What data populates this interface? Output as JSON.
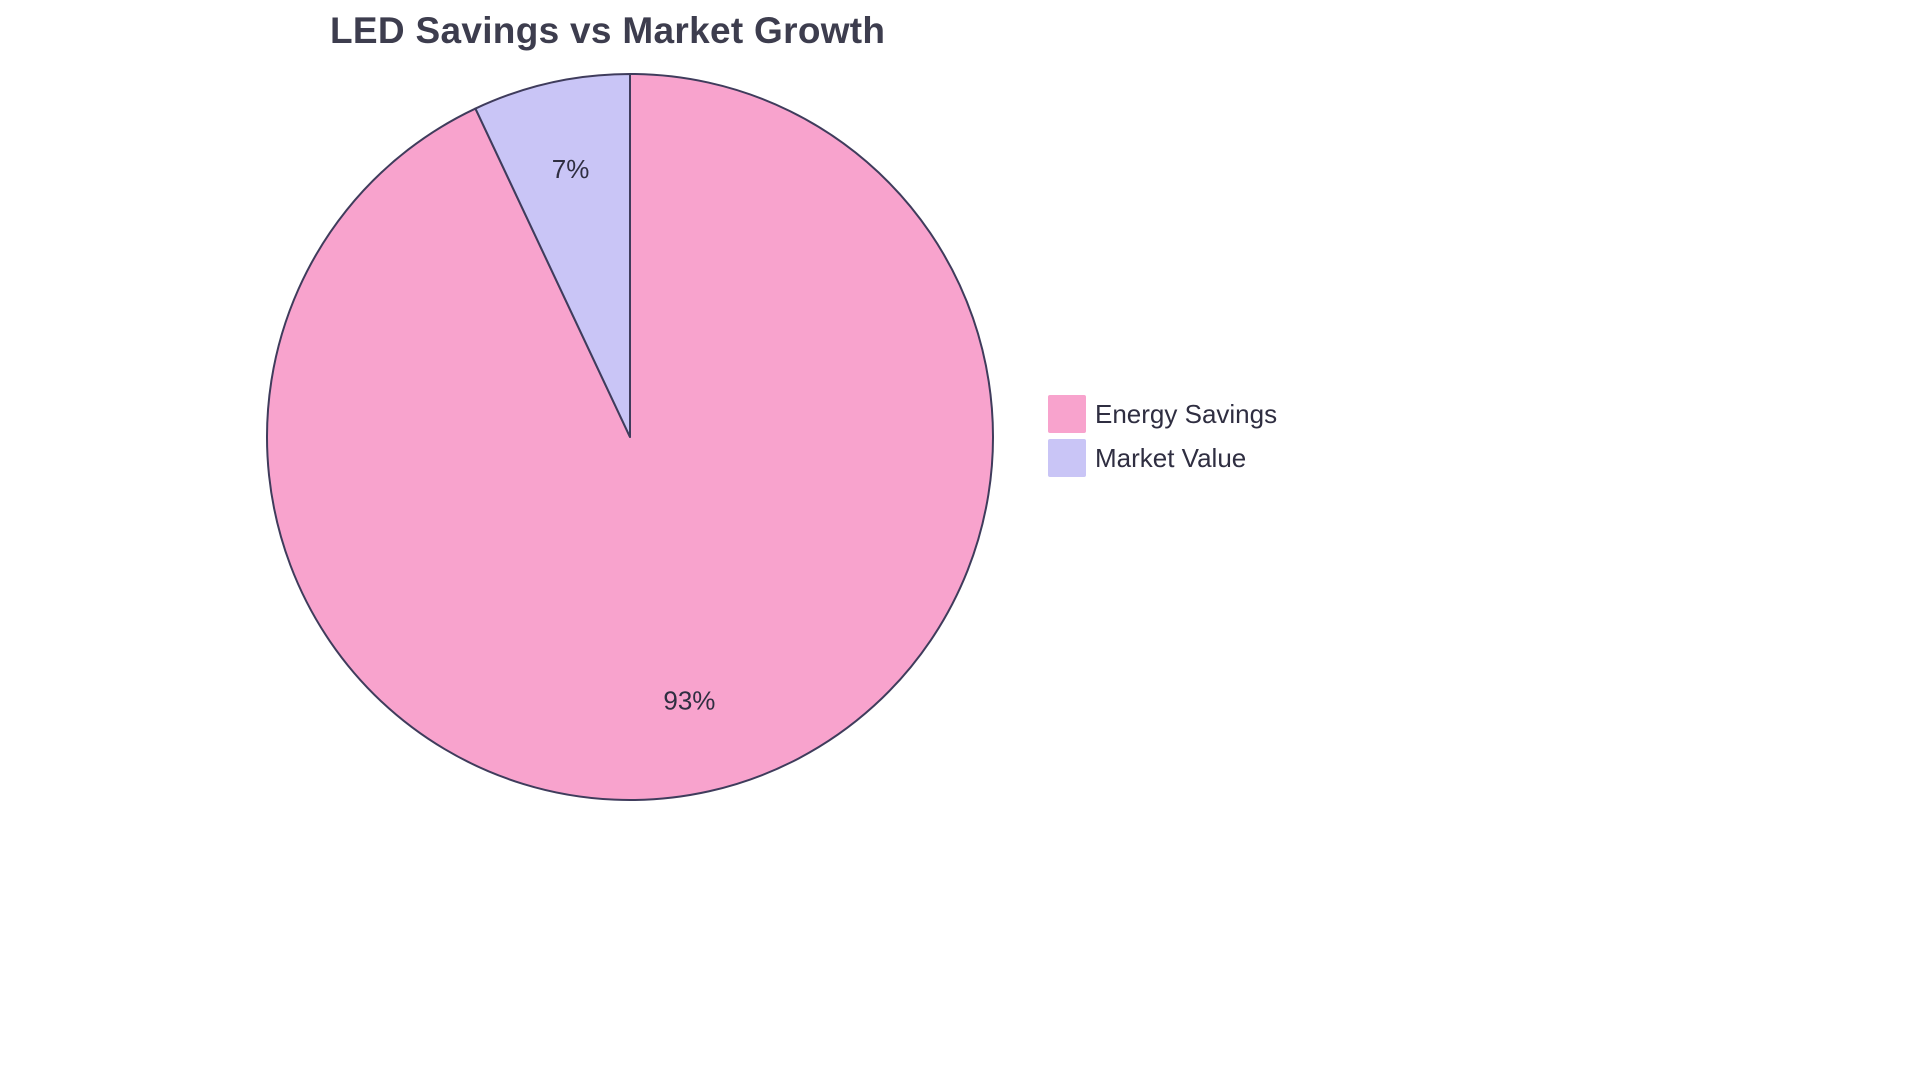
{
  "page": {
    "background_color": "#ffffff"
  },
  "chart_data": {
    "type": "pie",
    "title": "LED Savings vs Market Growth",
    "series": [
      {
        "label": "Energy Savings",
        "value": 93,
        "pct_label": "93%",
        "color": "#F8A3CD"
      },
      {
        "label": "Market Value",
        "value": 7,
        "pct_label": "7%",
        "color": "#C9C5F6"
      }
    ],
    "start_angle": "top",
    "direction": "clockwise",
    "legend_position": "right",
    "slice_border_color": "#3F3C5C",
    "slice_border_width": 2,
    "label_color": "#2f2e41",
    "grid": false
  }
}
